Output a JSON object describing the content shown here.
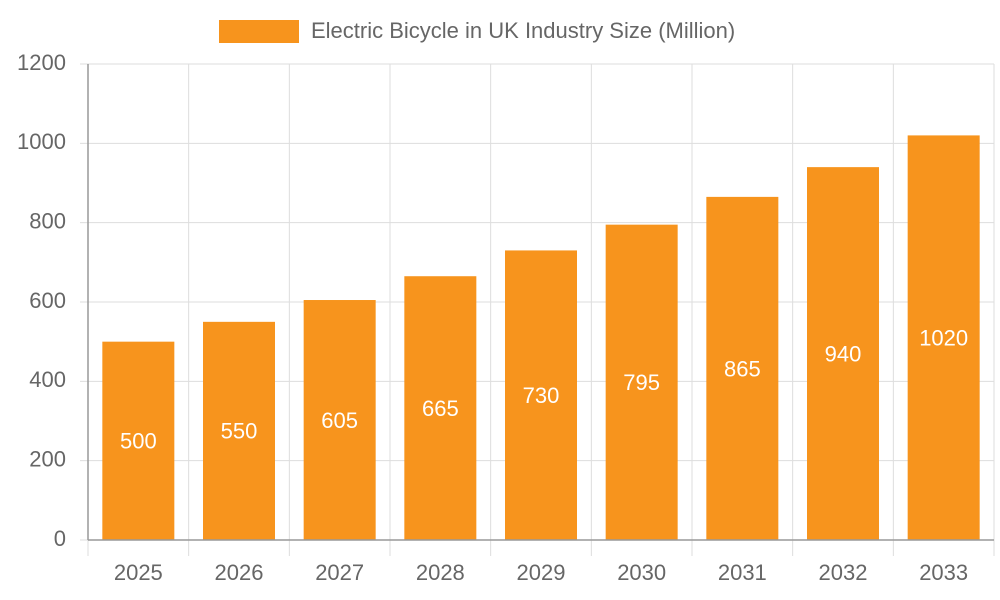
{
  "chart_data": {
    "type": "bar",
    "categories": [
      "2025",
      "2026",
      "2027",
      "2028",
      "2029",
      "2030",
      "2031",
      "2032",
      "2033"
    ],
    "series": [
      {
        "name": "Electric Bicycle in UK Industry Size (Million)",
        "color": "#f7941d",
        "values": [
          500,
          550,
          605,
          665,
          730,
          795,
          865,
          940,
          1020
        ]
      }
    ],
    "ylim": [
      0,
      1200
    ],
    "yticks": [
      0,
      200,
      400,
      600,
      800,
      1000,
      1200
    ],
    "grid": true,
    "legend": "top",
    "data_labels": true
  }
}
